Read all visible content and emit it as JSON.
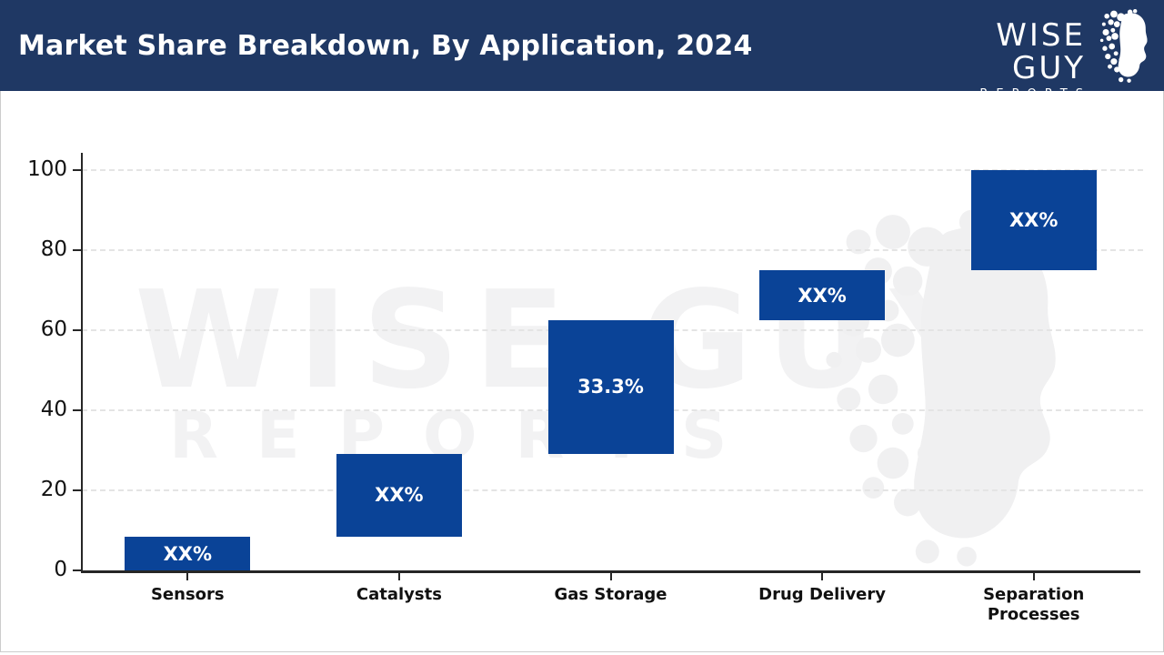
{
  "header": {
    "title": "Market Share Breakdown, By Application, 2024",
    "logo": {
      "line1": "WISE GUY",
      "line2": "REPORTS",
      "face_icon": "dotted-face-profile"
    },
    "bg_color": "#1f3864",
    "text_color": "#ffffff"
  },
  "watermark": {
    "line1": "WISE GUY",
    "line2": "REPORTS"
  },
  "chart_data": {
    "type": "bar",
    "subtype": "floating-waterfall",
    "title": "Market Share Breakdown, By Application, 2024",
    "categories": [
      "Sensors",
      "Catalysts",
      "Gas Storage",
      "Drug Delivery",
      "Separation Processes"
    ],
    "segments": [
      {
        "category": "Sensors",
        "label": "XX%",
        "start": 0,
        "end": 8.3
      },
      {
        "category": "Catalysts",
        "label": "XX%",
        "start": 8.3,
        "end": 29.2
      },
      {
        "category": "Gas Storage",
        "label": "33.3%",
        "start": 29.2,
        "end": 62.5
      },
      {
        "category": "Drug Delivery",
        "label": "XX%",
        "start": 62.5,
        "end": 75
      },
      {
        "category": "Separation Processes",
        "label": "XX%",
        "start": 75,
        "end": 100
      }
    ],
    "yticks": [
      0,
      20,
      40,
      60,
      80,
      100
    ],
    "ylim": [
      0,
      104
    ],
    "xlabel": "",
    "ylabel": "",
    "grid": "horizontal-dashed",
    "legend": "none",
    "bar_color": "#0a4397",
    "bar_label_color": "#ffffff",
    "axis_color": "#262626",
    "tick_label_color": "#111111",
    "grid_color": "#e4e4e4"
  }
}
